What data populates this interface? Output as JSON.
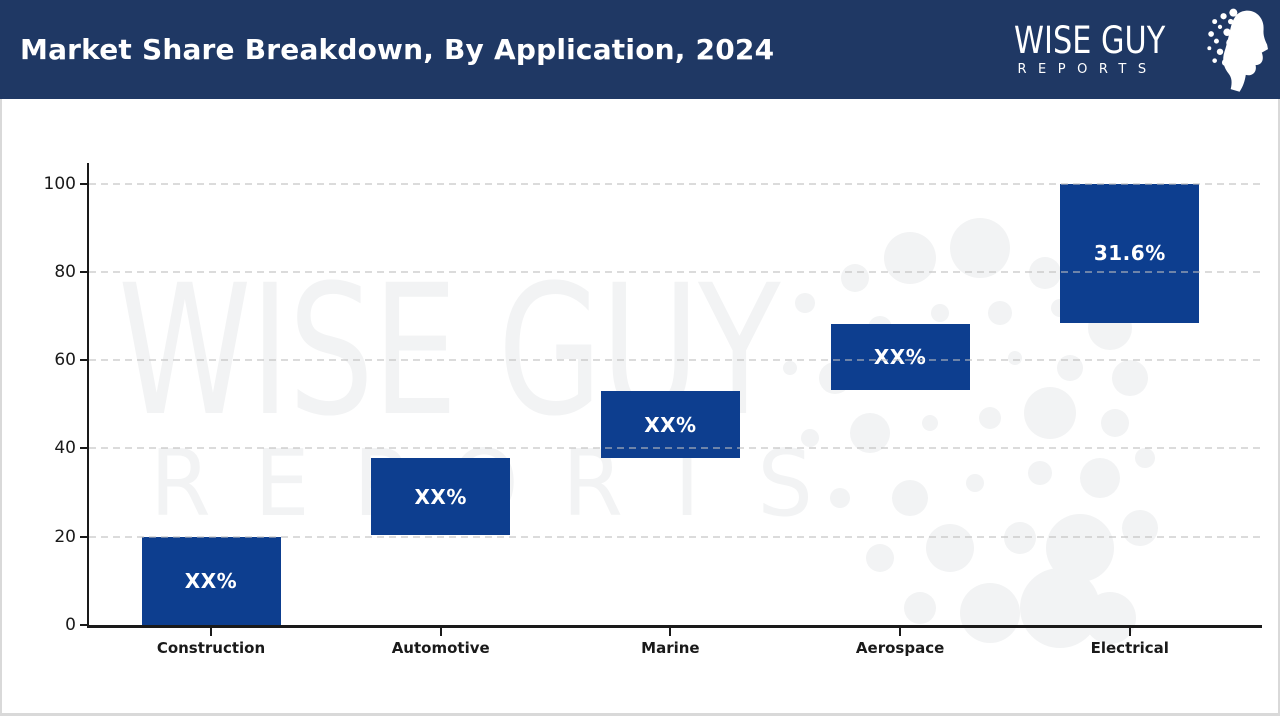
{
  "header": {
    "title": "Market Share Breakdown, By Application, 2024",
    "logo": {
      "line1": "WISE GUY",
      "line2": "REPORTS"
    }
  },
  "watermark": {
    "line1": "WISE GUY",
    "line2": "REPORTS"
  },
  "colors": {
    "header_bg": "#1f3864",
    "bar": "#0d3e8f",
    "bar_label": "#ffffff",
    "axis": "#1a1a1a",
    "gridline": "#e1e1e1",
    "watermark": "#f2f3f4",
    "border": "#d9d9d9",
    "title_text": "#ffffff"
  },
  "chart_data": {
    "type": "bar",
    "subtype": "waterfall-floating-bars",
    "title": "",
    "xlabel": "",
    "ylabel": "",
    "categories": [
      "Construction",
      "Automotive",
      "Marine",
      "Aerospace",
      "Electrical"
    ],
    "segments": [
      {
        "category": "Construction",
        "start": 0,
        "end": 20,
        "label": "XX%"
      },
      {
        "category": "Automotive",
        "start": 20.4,
        "end": 37.8,
        "label": "XX%"
      },
      {
        "category": "Marine",
        "start": 37.9,
        "end": 52.9,
        "label": "XX%"
      },
      {
        "category": "Aerospace",
        "start": 53.2,
        "end": 68.2,
        "label": "XX%"
      },
      {
        "category": "Electrical",
        "start": 68.4,
        "end": 100,
        "label": "31.6%"
      }
    ],
    "yticks": [
      0,
      20,
      40,
      60,
      80,
      100
    ],
    "ylim": [
      0,
      105
    ],
    "grid": "horizontal-dashed",
    "legend": "none"
  }
}
